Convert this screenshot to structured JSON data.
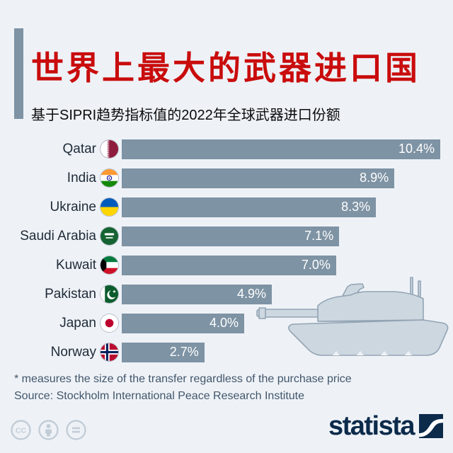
{
  "header": {
    "title": "世界上最大的武器进口国",
    "subtitle": "基于SIPRI趋势指标值的2022年全球武器进口份额"
  },
  "chart_data": {
    "type": "bar",
    "orientation": "horizontal",
    "title": "世界上最大的武器进口国",
    "subtitle": "基于SIPRI趋势指标值的2022年全球武器进口份额",
    "xlabel": "",
    "ylabel": "",
    "max_value": 10.4,
    "categories": [
      "Qatar",
      "India",
      "Ukraine",
      "Saudi Arabia",
      "Kuwait",
      "Pakistan",
      "Japan",
      "Norway"
    ],
    "values": [
      10.4,
      8.9,
      8.3,
      7.1,
      7.0,
      4.9,
      4.0,
      2.7
    ],
    "value_labels": [
      "10.4%",
      "8.9%",
      "8.3%",
      "7.1%",
      "7.0%",
      "4.9%",
      "4.0%",
      "2.7%"
    ],
    "flags": [
      "qatar",
      "india",
      "ukraine",
      "saudi-arabia",
      "kuwait",
      "pakistan",
      "japan",
      "norway"
    ],
    "bar_color": "#7e93a4",
    "grid": false,
    "legend": false
  },
  "footer": {
    "note": "* measures the size of the transfer regardless of the purchase price",
    "source": "Source: Stockholm International Peace Research Institute"
  },
  "license": {
    "cc_glyph": "CC"
  },
  "branding": {
    "logo_text": "statista"
  },
  "colors": {
    "background": "#eef2f7",
    "title_red": "#c90c0c",
    "bar": "#7e93a4",
    "accent_bar": "#7e93a4",
    "value_label": "#ffffff",
    "category_label": "#1f2a37",
    "footer_text": "#42566b",
    "logo_navy": "#0c2b4b",
    "tank_fill": "#cdd7e0",
    "tank_stroke": "#93a4b4",
    "license_gray": "#c3cdd7"
  }
}
